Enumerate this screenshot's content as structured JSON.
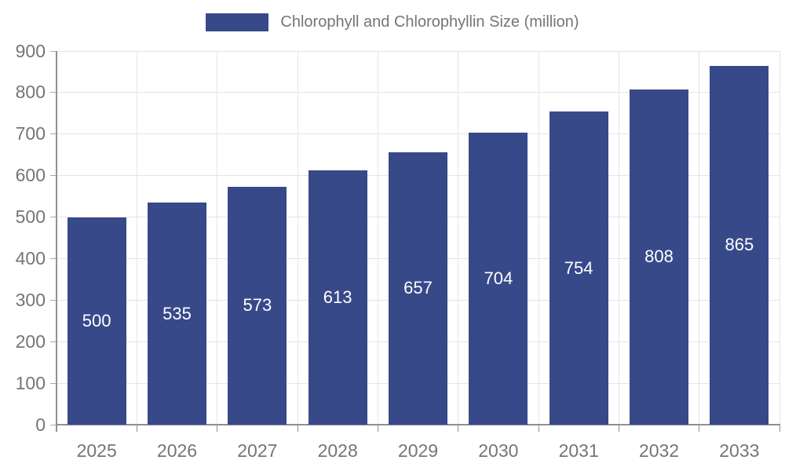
{
  "legend": {
    "label": "Chlorophyll and Chlorophyllin Size (million)"
  },
  "chart_data": {
    "type": "bar",
    "title": "Chlorophyll and Chlorophyllin Size (million)",
    "categories": [
      "2025",
      "2026",
      "2027",
      "2028",
      "2029",
      "2030",
      "2031",
      "2032",
      "2033"
    ],
    "values": [
      500,
      535,
      573,
      613,
      657,
      704,
      754,
      808,
      865
    ],
    "series": [
      {
        "name": "Chlorophyll and Chlorophyllin Size (million)",
        "values": [
          500,
          535,
          573,
          613,
          657,
          704,
          754,
          808,
          865
        ]
      }
    ],
    "xlabel": "",
    "ylabel": "",
    "ylim": [
      0,
      900
    ],
    "ytick_step": 100,
    "ytick_labels": [
      "0",
      "100",
      "200",
      "300",
      "400",
      "500",
      "600",
      "700",
      "800",
      "900"
    ],
    "grid": true,
    "legend_position": "top-center",
    "value_labels": "inside-center",
    "colors": {
      "bar": "#38498a",
      "value_label": "#ffffff",
      "axis": "#909090",
      "tick": "#aaaaaa",
      "grid": "#e4e4e8",
      "text": "#757575"
    }
  }
}
